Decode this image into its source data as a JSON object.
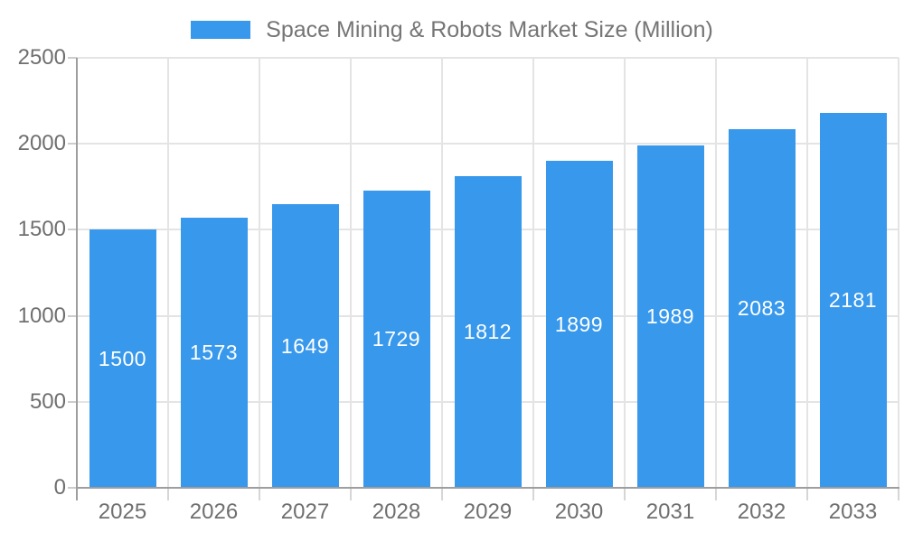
{
  "chart_data": {
    "type": "bar",
    "title": "Space Mining & Robots Market Size (Million)",
    "categories": [
      "2025",
      "2026",
      "2027",
      "2028",
      "2029",
      "2030",
      "2031",
      "2032",
      "2033"
    ],
    "values": [
      1500,
      1573,
      1649,
      1729,
      1812,
      1899,
      1989,
      2083,
      2181
    ],
    "xlabel": "",
    "ylabel": "",
    "ylim": [
      0,
      2500
    ],
    "yticks": [
      0,
      500,
      1000,
      1500,
      2000,
      2500
    ],
    "grid": true,
    "legend_position": "top-center",
    "value_labels_position": "inside-center",
    "colors": {
      "bar": "#3898ec",
      "value_label": "#ffffff",
      "axis_label": "#6f6f6f",
      "title": "#757575",
      "gridline": "#e4e4e4",
      "axis_line": "#9e9e9e",
      "background": "#ffffff"
    }
  }
}
